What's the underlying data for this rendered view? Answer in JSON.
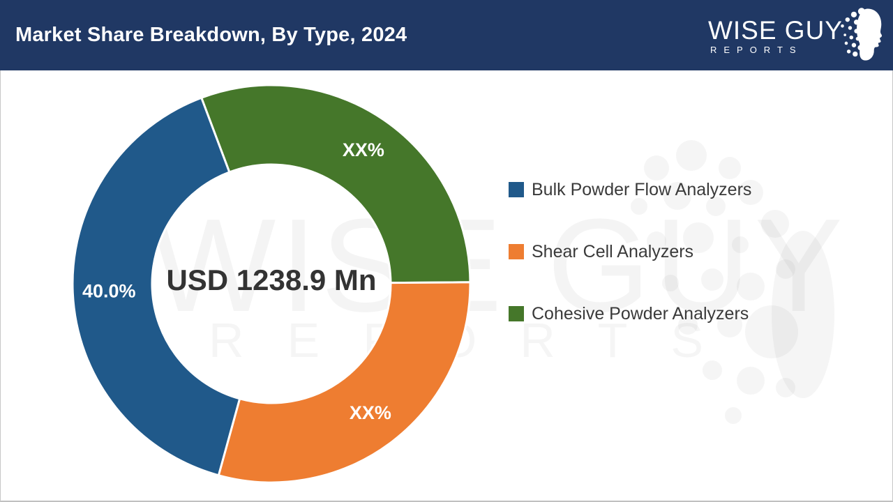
{
  "header": {
    "title": "Market Share Breakdown, By Type, 2024",
    "logo": {
      "line1": "WISE GUY",
      "line2": "REPORTS"
    }
  },
  "watermark": {
    "line1": "WISE GUY",
    "line2": "REPORTS"
  },
  "theme": {
    "header_background": "#203864",
    "content_background": "#ffffff",
    "border_gray": "#c6c6c6",
    "center_text_color": "#333333",
    "legend_text_color": "#3a3a3a"
  },
  "chart_data": {
    "type": "donut",
    "title": "Market Share Breakdown, By Type, 2024",
    "center_label": "USD 1238.9 Mn",
    "start_angle_deg": 110.6,
    "direction": "clockwise",
    "inner_radius_ratio": 0.6,
    "segments": [
      {
        "name": "Cohesive Powder Analyzers",
        "value_label": "XX%",
        "value_pct_est": 30.6,
        "color": "#45772A"
      },
      {
        "name": "Shear Cell Analyzers",
        "value_label": "XX%",
        "value_pct_est": 29.4,
        "color": "#EE7D31"
      },
      {
        "name": "Bulk Powder Flow Analyzers",
        "value_label": "40.0%",
        "value_pct_est": 40.0,
        "color": "#20598A"
      }
    ],
    "legend": [
      {
        "label": "Bulk Powder Flow Analyzers",
        "color": "#20598A"
      },
      {
        "label": "Shear Cell Analyzers",
        "color": "#EE7D31"
      },
      {
        "label": "Cohesive Powder Analyzers",
        "color": "#45772A"
      }
    ]
  }
}
